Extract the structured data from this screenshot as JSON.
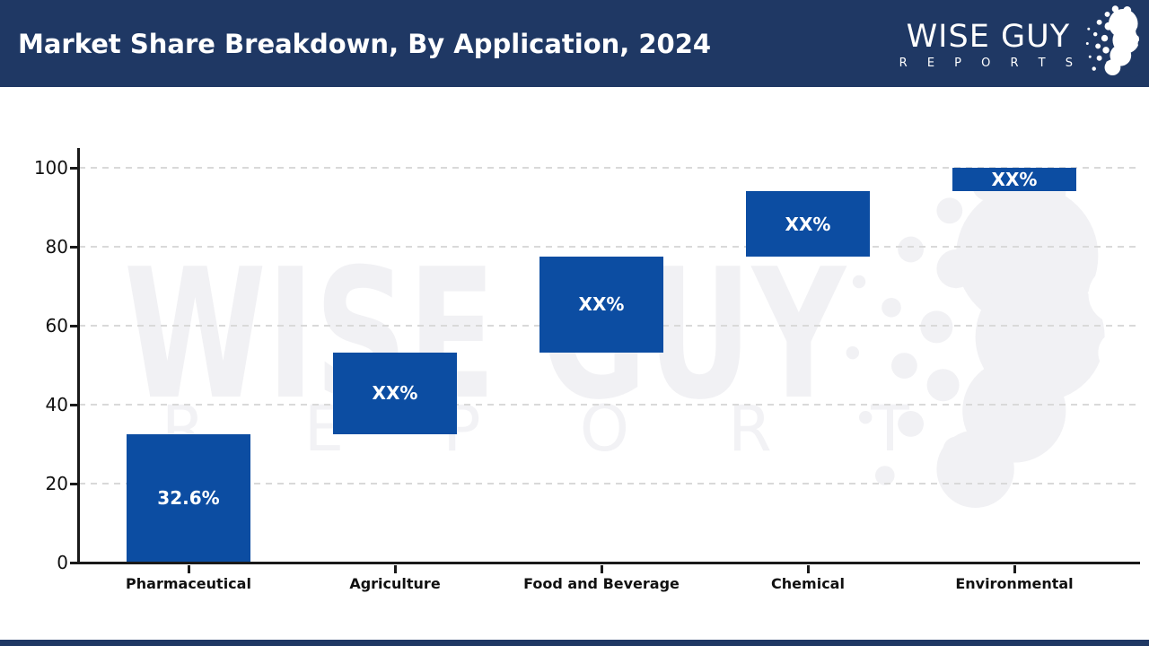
{
  "header": {
    "title": "Market Share Breakdown, By Application, 2024"
  },
  "logo": {
    "line1": "WISE GUY",
    "line2": "R E P O R T S"
  },
  "watermark": {
    "line1": "WISE GUY",
    "line2": "R E P O R T S"
  },
  "colors": {
    "navy": "#1f3864",
    "bar": "#0c4da2",
    "bar_label": "#ffffff",
    "axis": "#1a1a1a",
    "gridline": "#d9d9d9",
    "watermark": "#f1f1f4",
    "title_text": "#ffffff"
  },
  "chart_data": {
    "type": "bar",
    "subtype": "waterfall",
    "title": "Market Share Breakdown, By Application, 2024",
    "categories": [
      "Pharmaceutical",
      "Agriculture",
      "Food and Beverage",
      "Chemical",
      "Environmental"
    ],
    "segments": [
      {
        "category": "Pharmaceutical",
        "start": 0,
        "end": 32.6,
        "label": "32.6%"
      },
      {
        "category": "Agriculture",
        "start": 32.6,
        "end": 53.2,
        "label": "XX%"
      },
      {
        "category": "Food and Beverage",
        "start": 53.2,
        "end": 77.5,
        "label": "XX%"
      },
      {
        "category": "Chemical",
        "start": 77.5,
        "end": 94.0,
        "label": "XX%"
      },
      {
        "category": "Environmental",
        "start": 94.0,
        "end": 100.0,
        "label": "XX%"
      }
    ],
    "yticks": [
      0,
      20,
      40,
      60,
      80,
      100
    ],
    "ylim": [
      0,
      100
    ],
    "xlabel": "",
    "ylabel": "",
    "grid": "horizontal-dashed",
    "legend": "none"
  }
}
